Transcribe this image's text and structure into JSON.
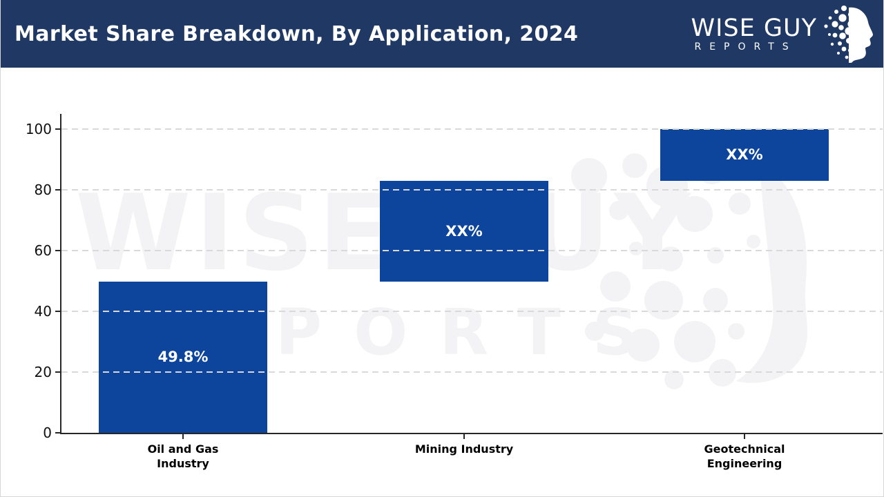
{
  "header": {
    "title": "Market Share Breakdown, By Application, 2024",
    "logo": {
      "name": "WISE GUY",
      "subtitle": "REPORTS"
    }
  },
  "watermark": {
    "name": "WISE GUY",
    "subtitle": "REPORTS"
  },
  "chart_data": {
    "type": "bar",
    "subtype": "floating-segment-waterfall",
    "title": "Market Share Breakdown, By Application, 2024",
    "categories": [
      "Oil and Gas\nIndustry",
      "Mining Industry",
      "Geotechnical\nEngineering"
    ],
    "series": [
      {
        "name": "Market share (%)",
        "segments": [
          {
            "category": "Oil and Gas Industry",
            "start": 0,
            "end": 49.8,
            "label": "49.8%"
          },
          {
            "category": "Mining Industry",
            "start": 49.8,
            "end": 83,
            "label": "XX%"
          },
          {
            "category": "Geotechnical Engineering",
            "start": 83,
            "end": 100,
            "label": "XX%"
          }
        ]
      }
    ],
    "yticks": [
      0,
      20,
      40,
      60,
      80,
      100
    ],
    "ylim": [
      0,
      105
    ],
    "xlabel": "",
    "ylabel": "",
    "grid": "horizontal-dashed-above-bars",
    "legend": "none",
    "colors": {
      "bar": "#0c459b",
      "grid": "#d9d9d9",
      "axis": "#262626",
      "header_bg": "#1f3864",
      "bar_label": "#ffffff",
      "tick_label": "#111111",
      "watermark": "#f3f3f5"
    }
  }
}
